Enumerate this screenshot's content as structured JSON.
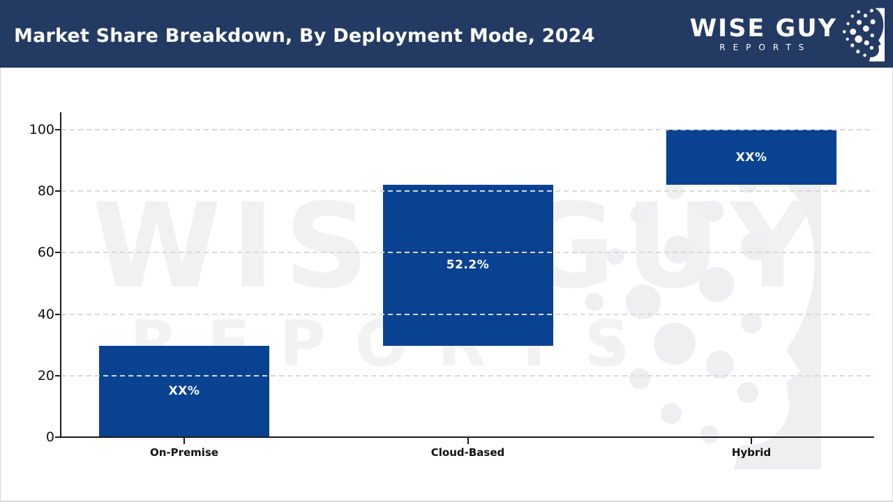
{
  "header": {
    "title": "Market Share Breakdown, By Deployment Mode, 2024",
    "brand_line1": "WISE GUY",
    "brand_line2": "REPORTS",
    "bg_color": "#233A63"
  },
  "watermark": {
    "line1": "WISE GUY",
    "line2": "REPORTS"
  },
  "chart_data": {
    "type": "bar",
    "subtype": "floating-segment-breakdown",
    "title": "Market Share Breakdown, By Deployment Mode, 2024",
    "categories": [
      "On-Premise",
      "Cloud-Based",
      "Hybrid"
    ],
    "segments": [
      [
        0,
        29.8
      ],
      [
        29.8,
        82.0
      ],
      [
        82.0,
        100
      ]
    ],
    "bar_labels": [
      "XX%",
      "52.2%",
      "XX%"
    ],
    "values_pct": [
      29.8,
      52.2,
      18.0
    ],
    "xlabel": "",
    "ylabel": "",
    "ylim": [
      0,
      100
    ],
    "yticks": [
      0,
      20,
      40,
      60,
      80,
      100
    ],
    "grid": "horizontal-dashed",
    "legend": "none",
    "bar_color": "#0A4292",
    "grid_color": "#d9d9d9",
    "axis_color": "#1a1a1a"
  }
}
